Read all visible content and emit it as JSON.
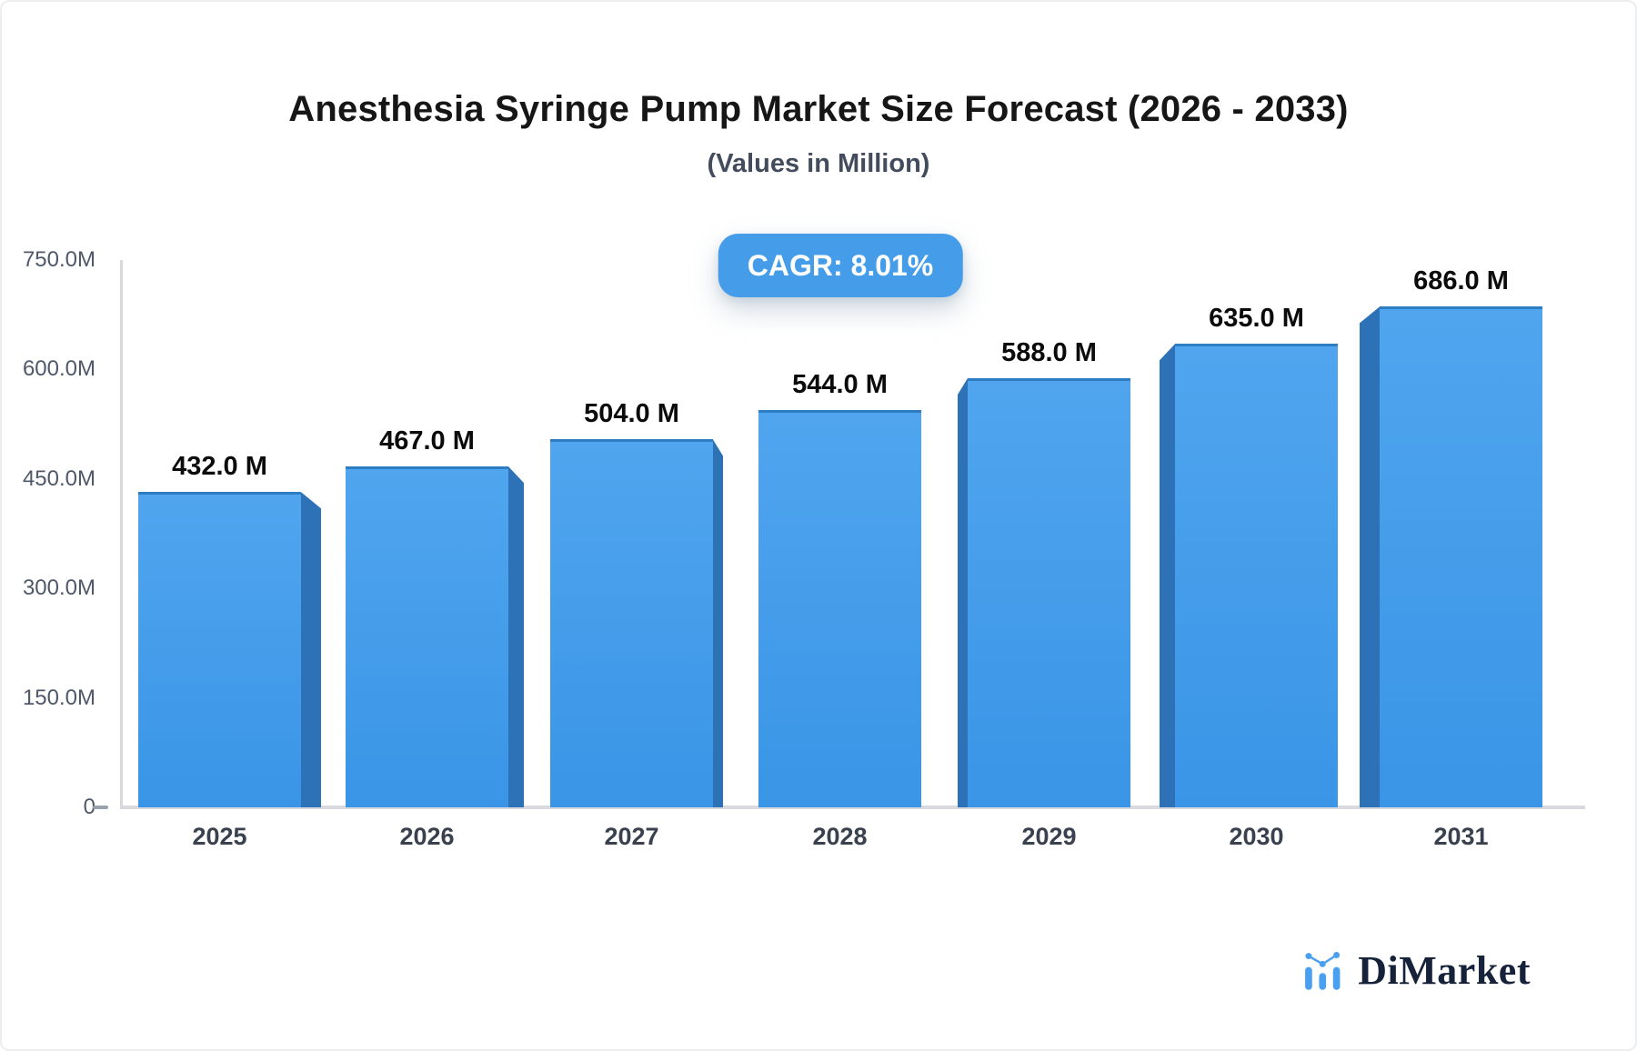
{
  "chart_data": {
    "type": "bar",
    "title": "Anesthesia Syringe Pump Market Size Forecast (2026 - 2033)",
    "subtitle": "(Values in Million)",
    "badge_label": "CAGR: 8.01%",
    "categories": [
      "2025",
      "2026",
      "2027",
      "2028",
      "2029",
      "2030",
      "2031"
    ],
    "values": [
      432.0,
      467.0,
      504.0,
      544.0,
      588.0,
      635.0,
      686.0
    ],
    "value_labels": [
      "432.0 M",
      "467.0 M",
      "504.0 M",
      "544.0 M",
      "588.0 M",
      "635.0 M",
      "686.0 M"
    ],
    "y_axis": {
      "min": 0,
      "max": 750,
      "ticks": [
        {
          "label": "750.0M",
          "value": 750
        },
        {
          "label": "600.0M",
          "value": 600
        },
        {
          "label": "450.0M",
          "value": 450
        },
        {
          "label": "300.0M",
          "value": 300
        },
        {
          "label": "150.0M",
          "value": 150
        },
        {
          "label": "0",
          "value": 0
        }
      ]
    },
    "grid": "off",
    "legend": "none",
    "colors": {
      "bar_front_top": "#50a5ee",
      "bar_front_bottom": "#3a95e7",
      "bar_side": "#2d72b6",
      "bar_top_edge": "#2e7cc2",
      "badge_bg": "#459de9",
      "axis": "#d7d9de"
    }
  },
  "logo": {
    "text": "DiMarket",
    "icon": "bar-chart-logo-icon",
    "text_color": "#16223a",
    "icon_color": "#4aa0f0"
  }
}
